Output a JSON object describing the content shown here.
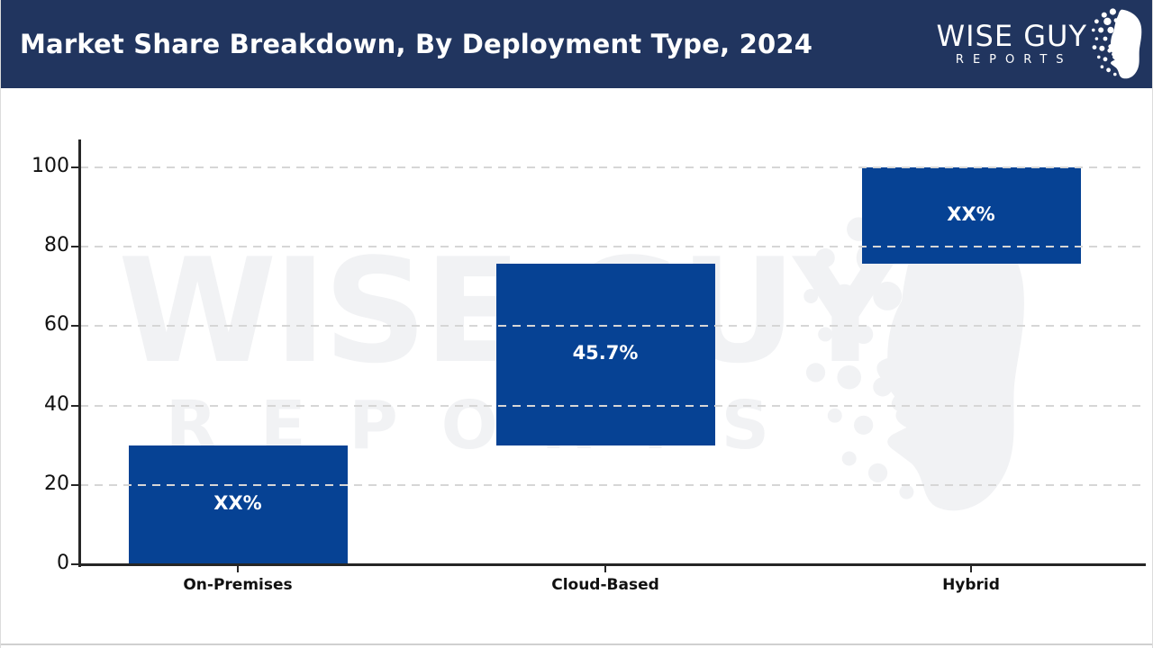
{
  "header": {
    "title": "Market Share Breakdown, By Deployment Type, 2024",
    "logo": {
      "primary": "WISE GUY",
      "secondary": "REPORTS"
    }
  },
  "watermark": {
    "primary": "WISE GUY",
    "secondary": "REPORTS"
  },
  "colors": {
    "header_bg": "#21355f",
    "bar": "#064294",
    "grid": "#d6d6d6",
    "axis": "#262626",
    "bar_label": "#ffffff",
    "watermark": "#f1f2f4"
  },
  "chart_data": {
    "type": "bar",
    "variant": "floating-segment-waterfall",
    "title": "Market Share Breakdown, By Deployment Type, 2024",
    "categories": [
      "On-Premises",
      "Cloud-Based",
      "Hybrid"
    ],
    "segments": [
      {
        "category": "On-Premises",
        "from": 0,
        "to": 30,
        "label": "XX%"
      },
      {
        "category": "Cloud-Based",
        "from": 30,
        "to": 75.7,
        "label": "45.7%"
      },
      {
        "category": "Hybrid",
        "from": 75.7,
        "to": 100,
        "label": "XX%"
      }
    ],
    "yticks": [
      0,
      20,
      40,
      60,
      80,
      100
    ],
    "ylim": [
      0,
      107
    ],
    "xlabel": "",
    "ylabel": "",
    "grid": "horizontal-dashed-over-bars",
    "legend": "none"
  }
}
